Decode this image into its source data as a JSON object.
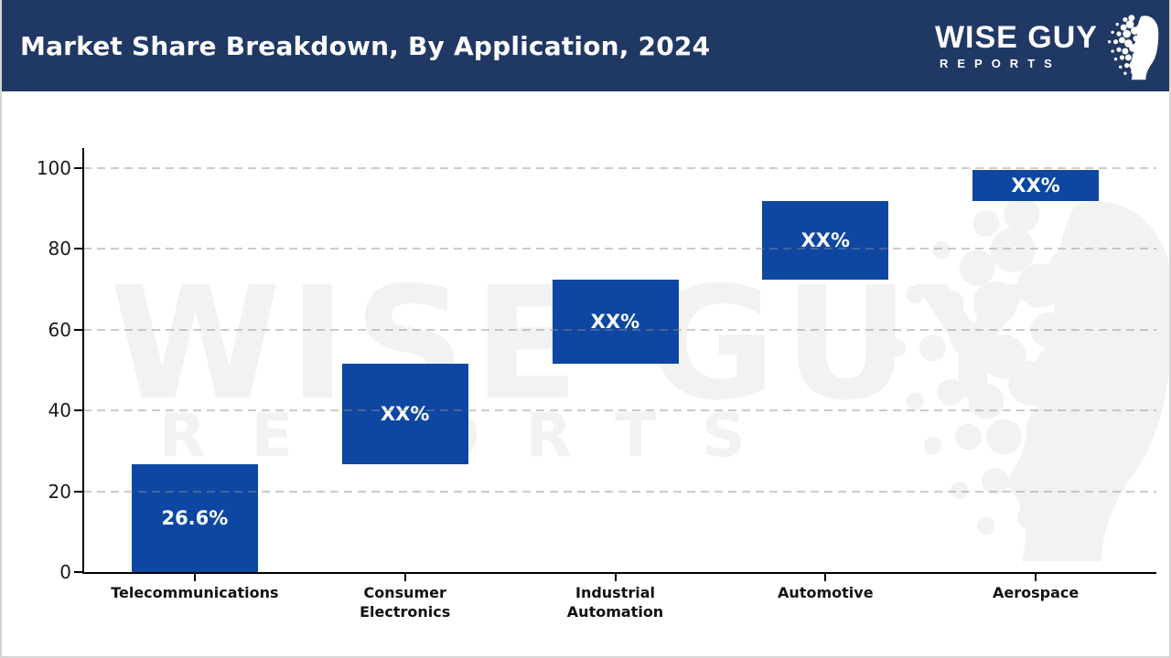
{
  "header": {
    "title": "Market Share Breakdown, By Application, 2024",
    "logo": {
      "line1": "WISE GUY",
      "line2": "REPORTS"
    }
  },
  "watermark": {
    "line1": "WISE GUY",
    "line2": "REPORTS"
  },
  "colors": {
    "header_bg": "#203864",
    "bar": "#0d47a1",
    "value_label": "#ffffff",
    "axis": "#000000",
    "tick_label": "#1a1a1a",
    "gridline": "#c8c8c8",
    "watermark": "#f2f2f2"
  },
  "chart_data": {
    "type": "bar",
    "subtype": "waterfall-stacked-segments",
    "title": "Market Share Breakdown, By Application, 2024",
    "categories": [
      "Telecommunications",
      "Consumer\nElectronics",
      "Industrial\nAutomation",
      "Automotive",
      "Aerospace"
    ],
    "segments": [
      {
        "category": "Telecommunications",
        "start": 0,
        "end": 26.6,
        "label": "26.6%"
      },
      {
        "category": "Consumer Electronics",
        "start": 26.6,
        "end": 51.5,
        "label": "XX%"
      },
      {
        "category": "Industrial Automation",
        "start": 51.5,
        "end": 72.3,
        "label": "XX%"
      },
      {
        "category": "Automotive",
        "start": 72.3,
        "end": 91.8,
        "label": "XX%"
      },
      {
        "category": "Aerospace",
        "start": 91.8,
        "end": 99.5,
        "label": "XX%"
      }
    ],
    "xlabel": "",
    "ylabel": "",
    "ylim": [
      0,
      100
    ],
    "yticks": [
      0,
      20,
      40,
      60,
      80,
      100
    ],
    "grid": {
      "axis": "y",
      "style": "dashed",
      "drawn_over_bars": true
    },
    "legend": "none"
  }
}
